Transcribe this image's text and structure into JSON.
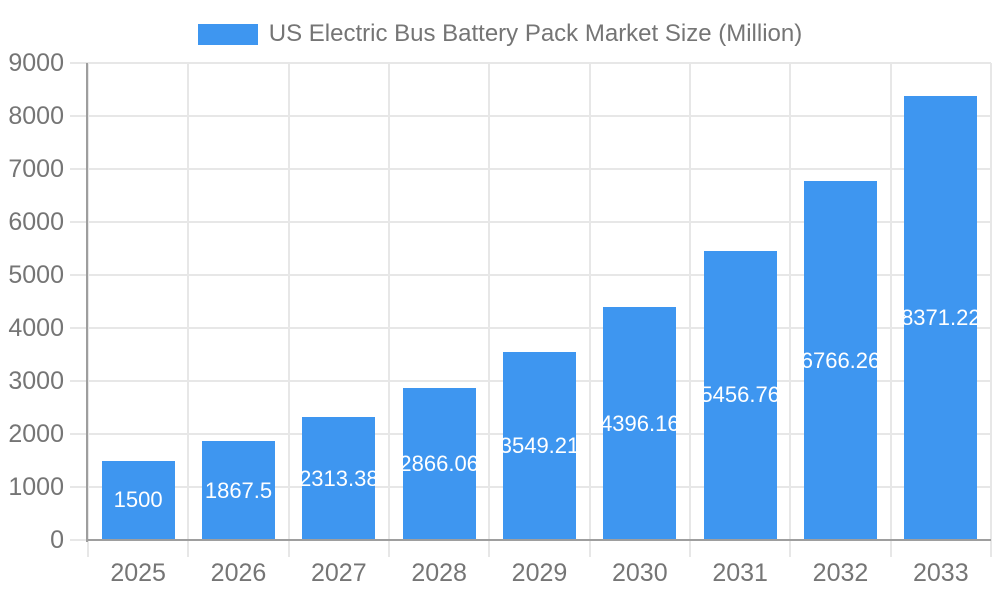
{
  "chart_data": {
    "type": "bar",
    "title": "US Electric Bus Battery Pack Market Size (Million)",
    "categories": [
      "2025",
      "2026",
      "2027",
      "2028",
      "2029",
      "2030",
      "2031",
      "2032",
      "2033"
    ],
    "values": [
      1500,
      1867.5,
      2313.38,
      2866.06,
      3549.21,
      4396.16,
      5456.76,
      6766.26,
      8371.22
    ],
    "value_labels": [
      "1500",
      "1867.5",
      "2313.38",
      "2866.06",
      "3549.21",
      "4396.16",
      "5456.76",
      "6766.26",
      "8371.22"
    ],
    "xlabel": "",
    "ylabel": "",
    "ylim": [
      0,
      9000
    ],
    "ytick_interval": 1000,
    "ytick_labels": [
      "0",
      "1000",
      "2000",
      "3000",
      "4000",
      "5000",
      "6000",
      "7000",
      "8000",
      "9000"
    ],
    "grid": true,
    "legend_position": "top",
    "colors": {
      "bar": "#3E96F0",
      "grid_line": "#E7E7E7",
      "axis_line": "#9E9E9E",
      "tick_text": "#757575",
      "title_text": "#757575",
      "bar_label_text": "#FFFFFF"
    }
  }
}
